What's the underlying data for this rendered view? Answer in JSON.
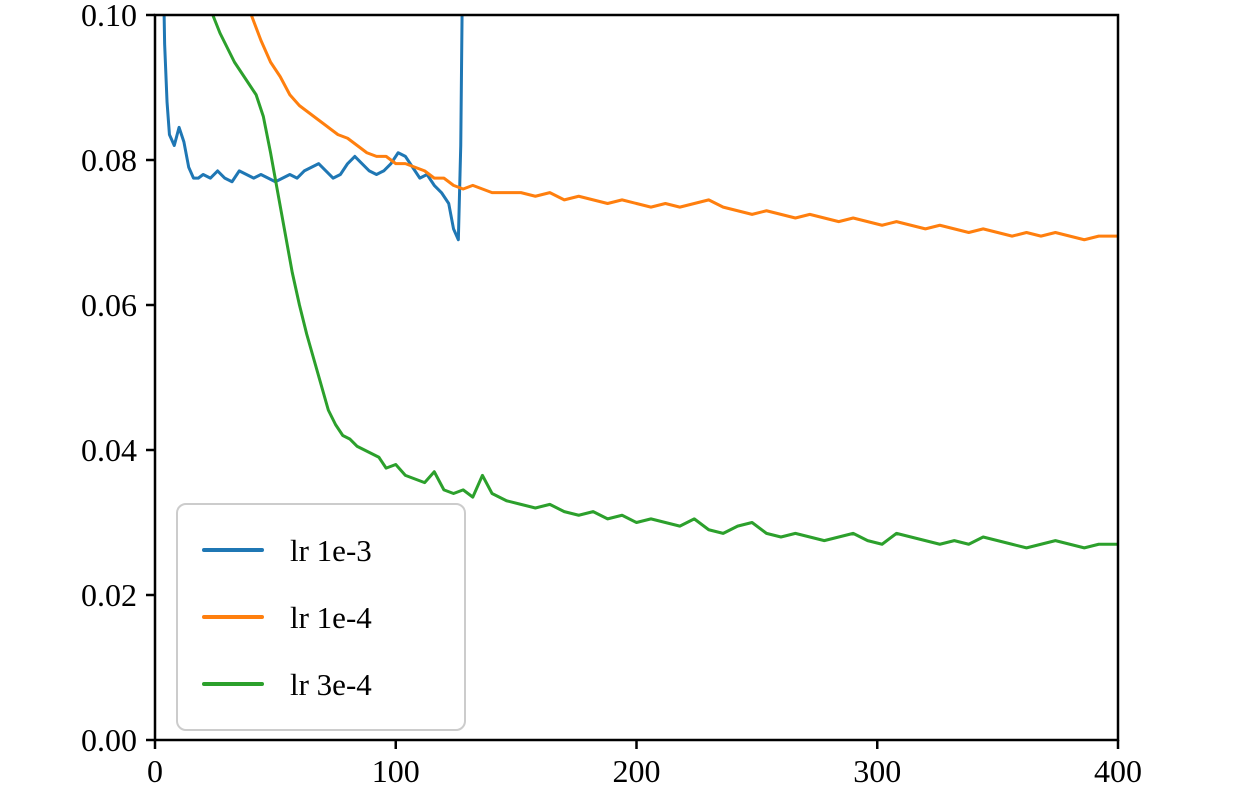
{
  "chart_data": {
    "type": "line",
    "title": "",
    "xlabel": "",
    "ylabel": "",
    "xlim": [
      0,
      400
    ],
    "ylim": [
      0.0,
      0.1
    ],
    "grid": false,
    "legend_position": "lower left",
    "frame_color": "#000000",
    "background_color": "#ffffff",
    "xticks": {
      "values": [
        0,
        100,
        200,
        300,
        400
      ],
      "labels": [
        "0",
        "100",
        "200",
        "300",
        "400"
      ]
    },
    "yticks": {
      "values": [
        0.0,
        0.02,
        0.04,
        0.06,
        0.08,
        0.1
      ],
      "labels": [
        "0.00",
        "0.02",
        "0.04",
        "0.06",
        "0.08",
        "0.10"
      ]
    },
    "series": [
      {
        "name": "lr 1e-3",
        "color": "#1f77b4",
        "x": [
          3,
          4,
          5,
          6,
          8,
          10,
          12,
          14,
          16,
          18,
          20,
          23,
          26,
          29,
          32,
          35,
          38,
          41,
          44,
          47,
          50,
          53,
          56,
          59,
          62,
          65,
          68,
          71,
          74,
          77,
          80,
          83,
          86,
          89,
          92,
          95,
          98,
          101,
          104,
          107,
          110,
          113,
          116,
          119,
          122,
          124,
          126,
          127,
          128
        ],
        "y": [
          0.115,
          0.096,
          0.088,
          0.0835,
          0.082,
          0.0845,
          0.0825,
          0.079,
          0.0775,
          0.0775,
          0.078,
          0.0775,
          0.0785,
          0.0775,
          0.077,
          0.0785,
          0.078,
          0.0775,
          0.078,
          0.0775,
          0.077,
          0.0775,
          0.078,
          0.0775,
          0.0785,
          0.079,
          0.0795,
          0.0785,
          0.0775,
          0.078,
          0.0795,
          0.0805,
          0.0795,
          0.0785,
          0.078,
          0.0785,
          0.0795,
          0.081,
          0.0805,
          0.079,
          0.0775,
          0.078,
          0.0765,
          0.0755,
          0.074,
          0.0705,
          0.069,
          0.082,
          0.115
        ]
      },
      {
        "name": "lr 1e-4",
        "color": "#ff7f0e",
        "x": [
          36,
          40,
          44,
          48,
          52,
          56,
          60,
          64,
          68,
          72,
          76,
          80,
          84,
          88,
          92,
          96,
          100,
          104,
          108,
          112,
          116,
          120,
          124,
          128,
          132,
          136,
          140,
          146,
          152,
          158,
          164,
          170,
          176,
          182,
          188,
          194,
          200,
          206,
          212,
          218,
          224,
          230,
          236,
          242,
          248,
          254,
          260,
          266,
          272,
          278,
          284,
          290,
          296,
          302,
          308,
          314,
          320,
          326,
          332,
          338,
          344,
          350,
          356,
          362,
          368,
          374,
          380,
          386,
          392,
          398,
          400
        ],
        "y": [
          0.106,
          0.1,
          0.0965,
          0.0935,
          0.0915,
          0.089,
          0.0875,
          0.0865,
          0.0855,
          0.0845,
          0.0835,
          0.083,
          0.082,
          0.081,
          0.0805,
          0.0805,
          0.0795,
          0.0795,
          0.079,
          0.0785,
          0.0775,
          0.0775,
          0.0765,
          0.076,
          0.0765,
          0.076,
          0.0755,
          0.0755,
          0.0755,
          0.075,
          0.0755,
          0.0745,
          0.075,
          0.0745,
          0.074,
          0.0745,
          0.074,
          0.0735,
          0.074,
          0.0735,
          0.074,
          0.0745,
          0.0735,
          0.073,
          0.0725,
          0.073,
          0.0725,
          0.072,
          0.0725,
          0.072,
          0.0715,
          0.072,
          0.0715,
          0.071,
          0.0715,
          0.071,
          0.0705,
          0.071,
          0.0705,
          0.07,
          0.0705,
          0.07,
          0.0695,
          0.07,
          0.0695,
          0.07,
          0.0695,
          0.069,
          0.0695,
          0.0695,
          0.0695
        ]
      },
      {
        "name": "lr 3e-4",
        "color": "#2ca02c",
        "x": [
          21,
          24,
          27,
          30,
          33,
          36,
          39,
          42,
          45,
          48,
          51,
          54,
          57,
          60,
          63,
          66,
          69,
          72,
          75,
          78,
          81,
          84,
          87,
          90,
          93,
          96,
          100,
          104,
          108,
          112,
          116,
          120,
          124,
          128,
          132,
          136,
          140,
          146,
          152,
          158,
          164,
          170,
          176,
          182,
          188,
          194,
          200,
          206,
          212,
          218,
          224,
          230,
          236,
          242,
          248,
          254,
          260,
          266,
          272,
          278,
          284,
          290,
          296,
          302,
          308,
          314,
          320,
          326,
          332,
          338,
          344,
          350,
          356,
          362,
          368,
          374,
          380,
          386,
          392,
          398,
          400
        ],
        "y": [
          0.104,
          0.1,
          0.0975,
          0.0955,
          0.0935,
          0.092,
          0.0905,
          0.089,
          0.086,
          0.081,
          0.0755,
          0.07,
          0.0645,
          0.06,
          0.056,
          0.0525,
          0.049,
          0.0455,
          0.0435,
          0.042,
          0.0415,
          0.0405,
          0.04,
          0.0395,
          0.039,
          0.0375,
          0.038,
          0.0365,
          0.036,
          0.0355,
          0.037,
          0.0345,
          0.034,
          0.0345,
          0.0335,
          0.0365,
          0.034,
          0.033,
          0.0325,
          0.032,
          0.0325,
          0.0315,
          0.031,
          0.0315,
          0.0305,
          0.031,
          0.03,
          0.0305,
          0.03,
          0.0295,
          0.0305,
          0.029,
          0.0285,
          0.0295,
          0.03,
          0.0285,
          0.028,
          0.0285,
          0.028,
          0.0275,
          0.028,
          0.0285,
          0.0275,
          0.027,
          0.0285,
          0.028,
          0.0275,
          0.027,
          0.0275,
          0.027,
          0.028,
          0.0275,
          0.027,
          0.0265,
          0.027,
          0.0275,
          0.027,
          0.0265,
          0.027,
          0.027,
          0.027
        ]
      }
    ]
  }
}
